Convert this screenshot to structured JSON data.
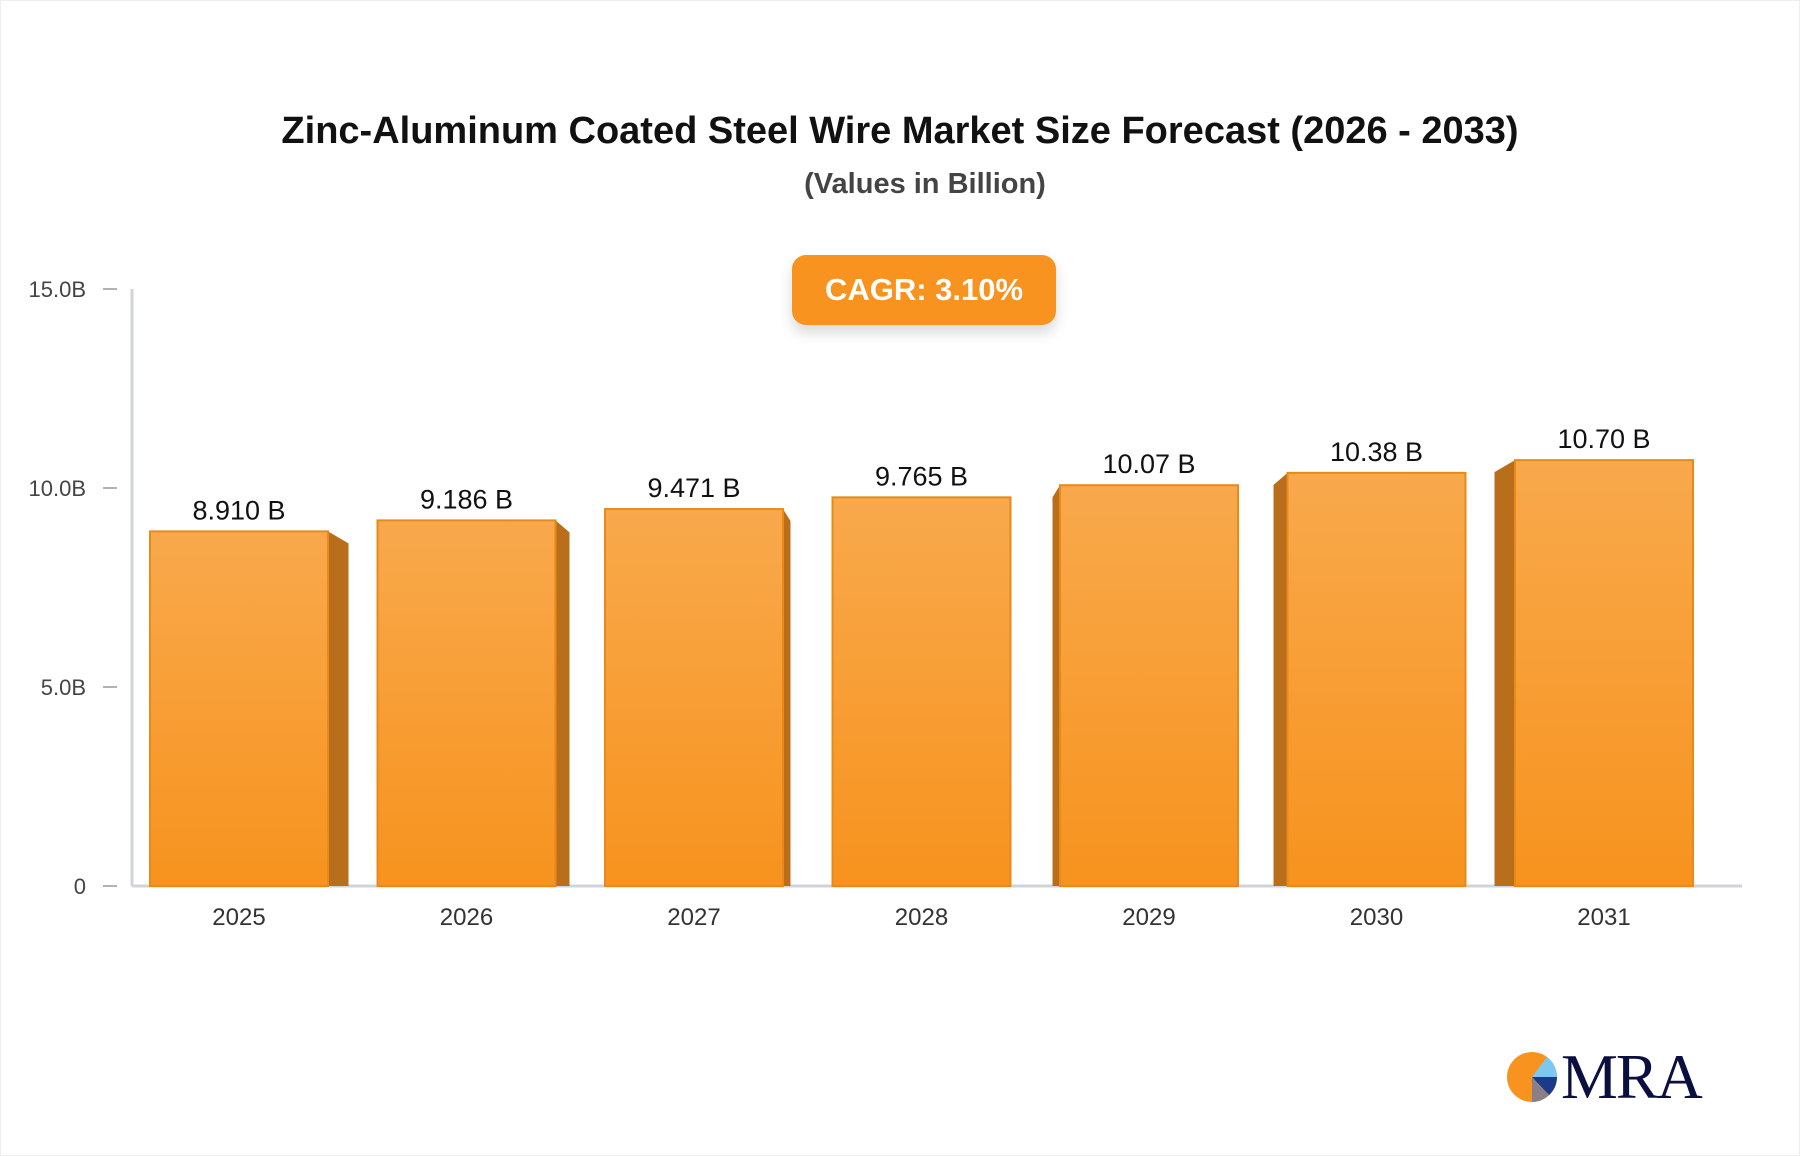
{
  "chart_data": {
    "type": "bar",
    "title": "Zinc-Aluminum Coated Steel Wire Market Size Forecast (2026 - 2033)",
    "subtitle": "(Values in Billion)",
    "annotation": "CAGR: 3.10%",
    "categories": [
      "2025",
      "2026",
      "2027",
      "2028",
      "2029",
      "2030",
      "2031"
    ],
    "values": [
      8.91,
      9.186,
      9.471,
      9.765,
      10.07,
      10.38,
      10.7
    ],
    "data_labels": [
      "8.910 B",
      "9.186 B",
      "9.471 B",
      "9.765 B",
      "10.07 B",
      "10.38 B",
      "10.70 B"
    ],
    "yticks": [
      0,
      5,
      10,
      15
    ],
    "ytick_labels": [
      "0",
      "5.0B",
      "10.0B",
      "15.0B"
    ],
    "ylim": [
      0,
      15
    ],
    "xlabel": "",
    "ylabel": "",
    "grid": false,
    "colors": {
      "bar_top": "#F8A94C",
      "bar_bottom": "#F7931E",
      "bar_side": "#B96E1B",
      "bar_edge": "#E8891A",
      "badge": "#F7931E"
    }
  },
  "logo": {
    "text": "MRA"
  }
}
